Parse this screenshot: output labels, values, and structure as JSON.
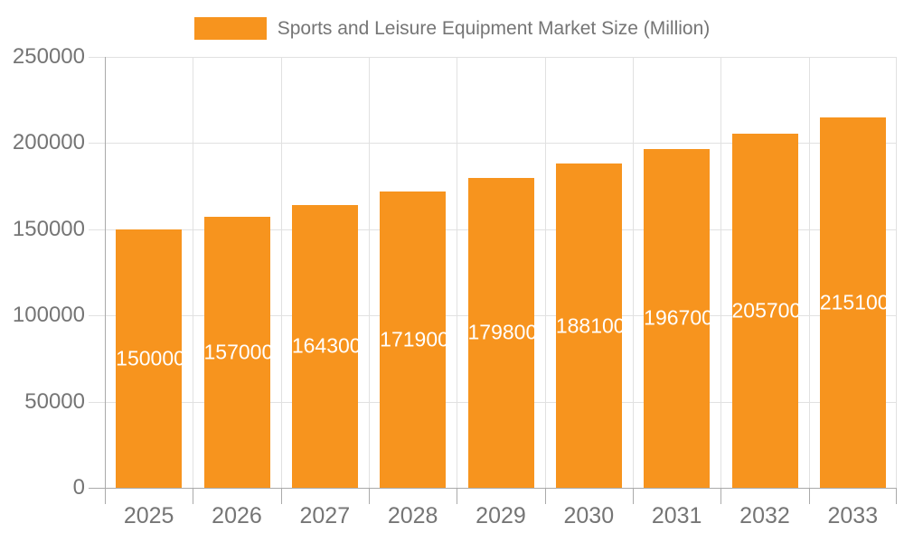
{
  "legend": {
    "label": "Sports and Leisure Equipment Market Size (Million)",
    "swatch_color": "#F7941E"
  },
  "chart_data": {
    "type": "bar",
    "title": "Sports and Leisure Equipment Market Size (Million)",
    "categories": [
      "2025",
      "2026",
      "2027",
      "2028",
      "2029",
      "2030",
      "2031",
      "2032",
      "2033"
    ],
    "series": [
      {
        "name": "Sports and Leisure Equipment Market Size (Million)",
        "values": [
          150000,
          157000,
          164300,
          171900,
          179800,
          188100,
          196700,
          205700,
          215100
        ]
      }
    ],
    "value_labels": [
      "150000",
      "157000",
      "164300",
      "171900",
      "179800",
      "188100",
      "196700",
      "205700",
      "215100"
    ],
    "xlabel": "",
    "ylabel": "",
    "ylim": [
      0,
      250000
    ],
    "yticks": [
      0,
      50000,
      100000,
      150000,
      200000,
      250000
    ],
    "ytick_labels": [
      "0",
      "50000",
      "100000",
      "150000",
      "200000",
      "250000"
    ],
    "grid": true,
    "legend_position": "top-center",
    "colors": {
      "bar": "#F7941E",
      "bar_value_label": "#FFFFFF",
      "axis_line": "#AAAAAA",
      "gridline": "#E1E1E1",
      "tick_label": "#757575",
      "legend_text": "#757575",
      "background": "#FFFFFF"
    }
  }
}
